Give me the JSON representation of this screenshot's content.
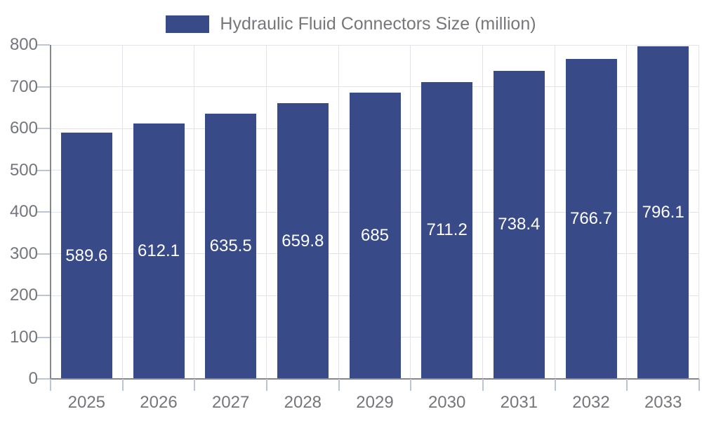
{
  "legend": {
    "label": "Hydraulic Fluid Connectors Size (million)"
  },
  "chart_data": {
    "type": "bar",
    "title": "Hydraulic Fluid Connectors Size (million)",
    "categories": [
      "2025",
      "2026",
      "2027",
      "2028",
      "2029",
      "2030",
      "2031",
      "2032",
      "2033"
    ],
    "values": [
      589.6,
      612.1,
      635.5,
      659.8,
      685,
      711.2,
      738.4,
      766.7,
      796.1
    ],
    "value_labels": [
      "589.6",
      "612.1",
      "635.5",
      "659.8",
      "685",
      "711.2",
      "738.4",
      "766.7",
      "796.1"
    ],
    "xlabel": "",
    "ylabel": "",
    "ylim": [
      0,
      800
    ],
    "ytick_interval": 100,
    "ytick_labels": [
      "0",
      "100",
      "200",
      "300",
      "400",
      "500",
      "600",
      "700",
      "800"
    ],
    "grid": true,
    "legend_position": "top-center",
    "bar_label_position": "inside-middle",
    "colors": {
      "bar": "#394A89",
      "bar_label": "#FFFFFF",
      "grid_line": "#E1E3E8",
      "axis_line": "#85878D",
      "tick": "#BCC4D6",
      "axis_text": "#74767C",
      "legend_text": "#75777D",
      "background": "#FFFFFF"
    }
  }
}
